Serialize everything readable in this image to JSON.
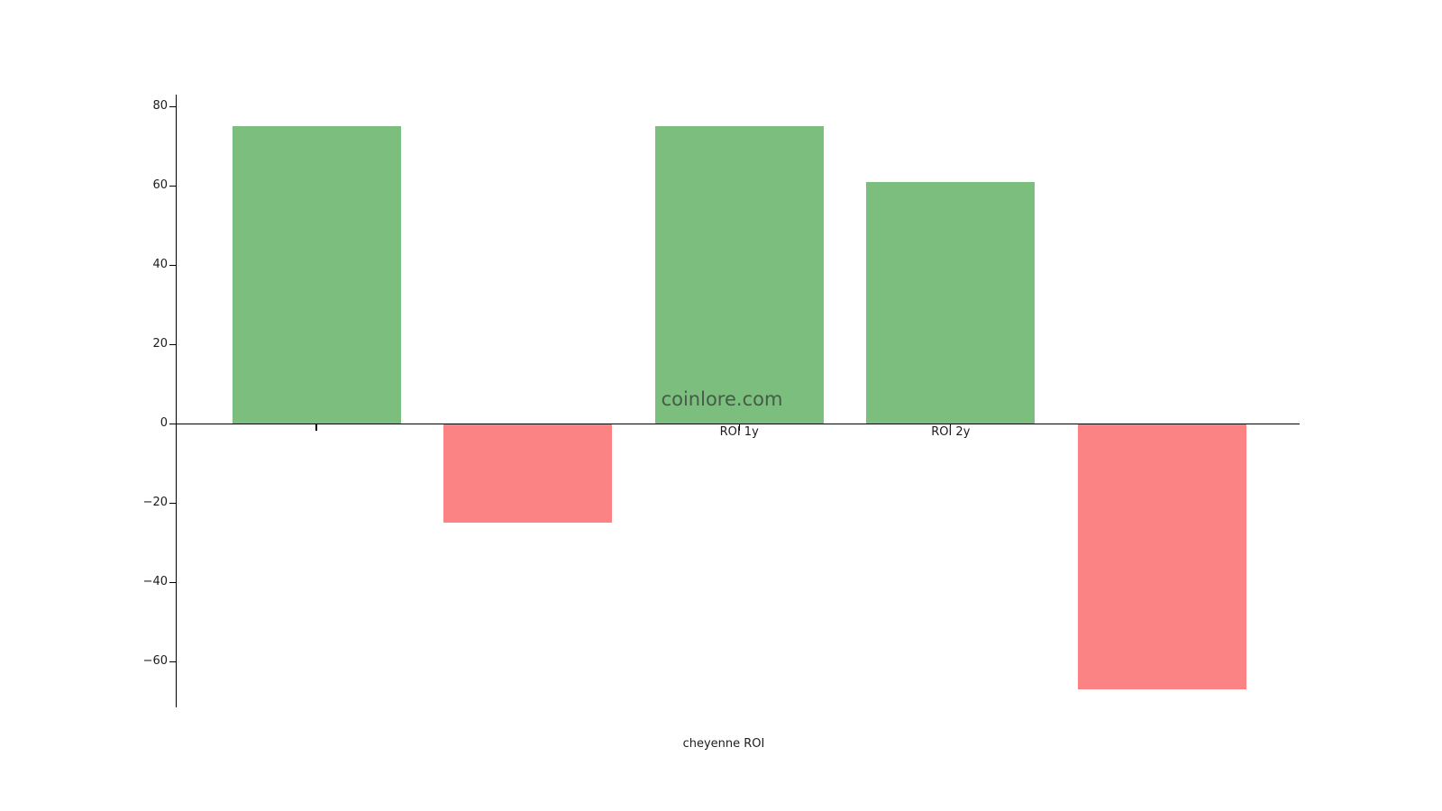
{
  "watermark": {
    "text": "coinlore.com",
    "color": "#3c4a3e"
  },
  "chart_data": {
    "type": "bar",
    "title": "",
    "xlabel": "cheyenne ROI",
    "ylabel": "",
    "categories": [
      "",
      "",
      "ROI 1y",
      "ROI 2y",
      ""
    ],
    "values": [
      75,
      -25,
      75,
      61,
      -67
    ],
    "positive_color": "#7cbe7e",
    "negative_color": "#fc8383",
    "yticks": [
      80,
      60,
      40,
      20,
      0,
      -20,
      -40,
      -60
    ],
    "ytick_labels": [
      "80",
      "60",
      "40",
      "20",
      "0",
      "−20",
      "−40",
      "−60"
    ],
    "ylim": [
      -71.5,
      83
    ],
    "grid": false,
    "legend": false,
    "background": "#ffffff",
    "axis_color": "#000000",
    "text_color": "#1c1c1c",
    "legend_position": "none"
  }
}
